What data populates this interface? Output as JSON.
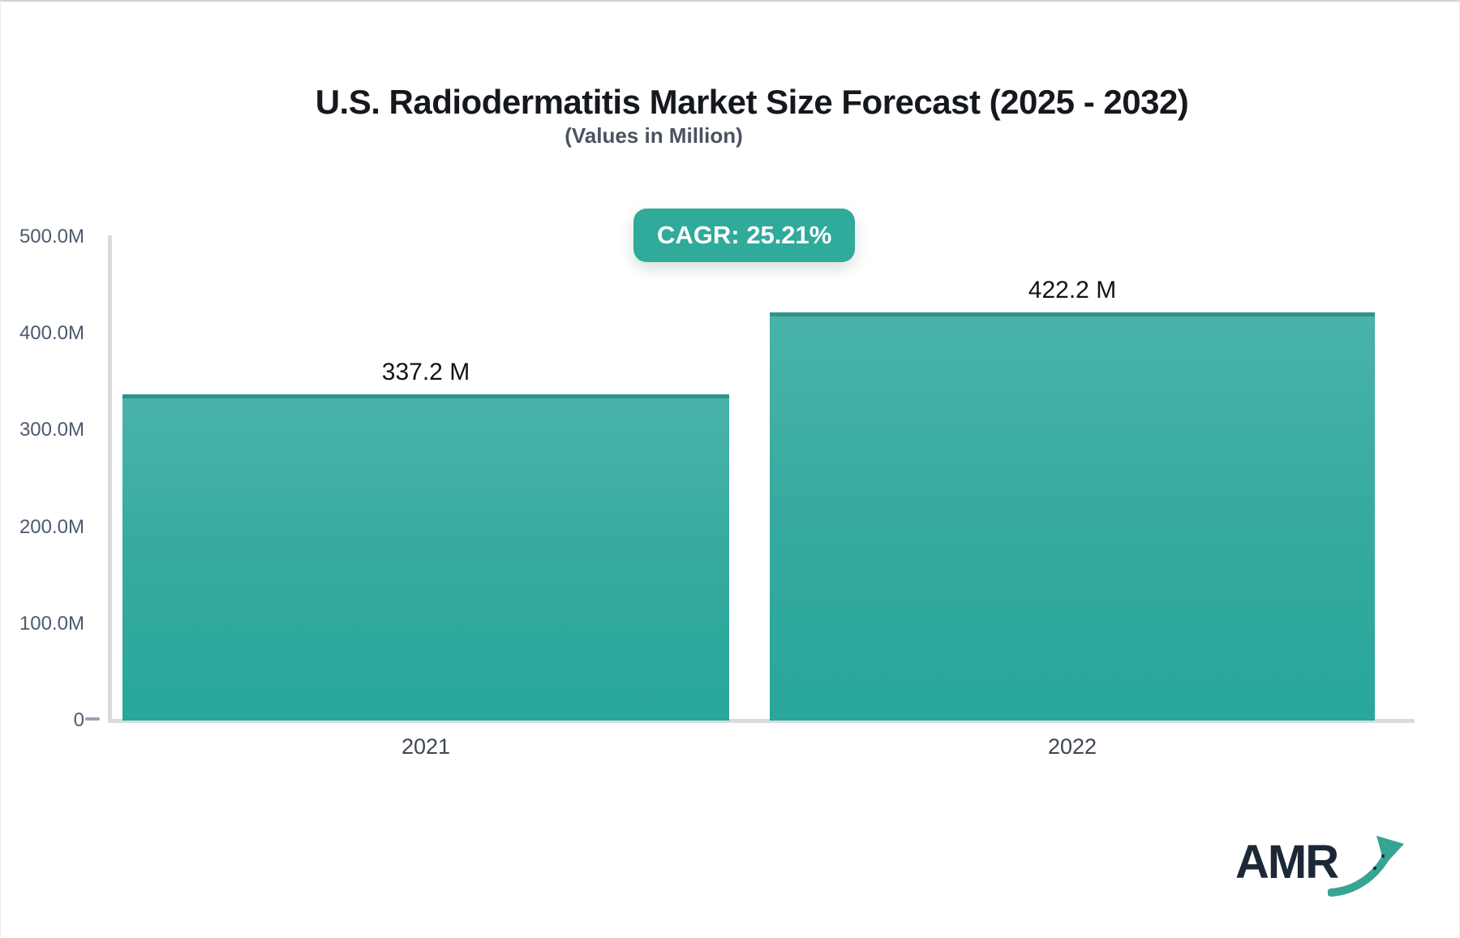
{
  "chart_data": {
    "type": "bar",
    "title": "U.S. Radiodermatitis Market Size Forecast (2025 - 2032)",
    "subtitle": "(Values in Million)",
    "annotation_badge": "CAGR: 25.21%",
    "categories": [
      "2021",
      "2022"
    ],
    "values": [
      337.2,
      422.2
    ],
    "value_labels": [
      "337.2 M",
      "422.2 M"
    ],
    "ylim": [
      0,
      500
    ],
    "y_ticks": [
      {
        "value": 500,
        "label": "500.0M"
      },
      {
        "value": 400,
        "label": "400.0M"
      },
      {
        "value": 300,
        "label": "300.0M"
      },
      {
        "value": 200,
        "label": "200.0M"
      },
      {
        "value": 100,
        "label": "100.0M"
      },
      {
        "value": 0,
        "label": "0"
      }
    ],
    "grid": false,
    "legend": null
  },
  "logo": {
    "text": "AMR",
    "icon": "growth-arrow-icon"
  },
  "colors": {
    "bar_fill_top": "#49b3a9",
    "bar_fill_bottom": "#28a79a",
    "bar_top_edge": "#2e948a",
    "badge_bg": "#2faa9b",
    "badge_text": "#ffffff",
    "axis_line": "#d8dcde",
    "tick_text": "#4c5a6e",
    "x_label_text": "#3d4654",
    "value_label_text": "#101418",
    "title_text": "#15181d",
    "subtitle_text": "#4a5361",
    "logo_text": "#1c2737",
    "logo_arrow": "#36a493"
  }
}
